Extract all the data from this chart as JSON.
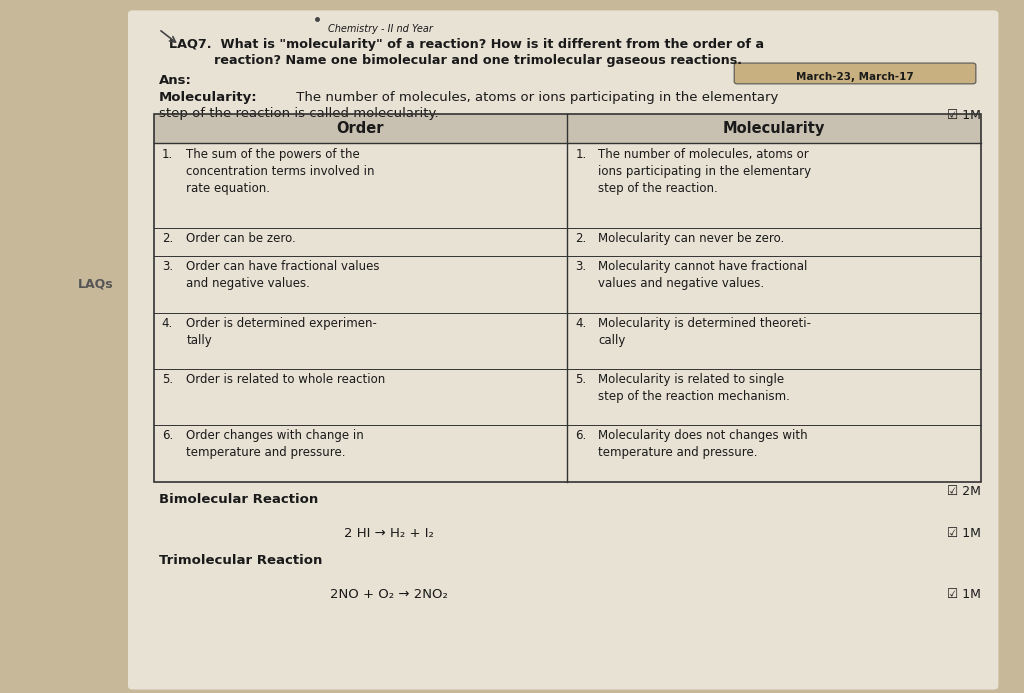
{
  "bg_color": "#c8b89a",
  "page_bg": "#e8e0d0",
  "header_small": "Chemistry - II nd Year",
  "question_line1": "LAQ7.  What is \"molecularity\" of a reaction? How is it different from the order of a",
  "question_line2": "          reaction? Name one bimolecular and one trimolecular gaseous reactions.",
  "ans_label": "Ans:",
  "date_label": "March-23, March-17",
  "mol_bold": "Molecularity:",
  "mol_rest_line1": " The number of molecules, atoms or ions participating in the elementary",
  "mol_line2": "step of the reaction is called molecularity.",
  "mark1a": "☑ 1M",
  "table_header_order": "Order",
  "table_header_mol": "Molecularity",
  "table_rows": [
    [
      "1.",
      "The sum of the powers of the\nconcentration terms involved in\nrate equation.",
      "1.",
      "The number of molecules, atoms or\nions participating in the elementary\nstep of the reaction."
    ],
    [
      "2.",
      "Order can be zero.",
      "2.",
      "Molecularity can never be zero."
    ],
    [
      "3.",
      "Order can have fractional values\nand negative values.",
      "3.",
      "Molecularity cannot have fractional\nvalues and negative values."
    ],
    [
      "4.",
      "Order is determined experimen-\ntally",
      "4.",
      "Molecularity is determined theoreti-\ncally"
    ],
    [
      "5.",
      "Order is related to whole reaction",
      "5.",
      "Molecularity is related to single\nstep of the reaction mechanism."
    ],
    [
      "6.",
      "Order changes with change in\ntemperature and pressure.",
      "6.",
      "Molecularity does not changes with\ntemperature and pressure."
    ]
  ],
  "mark2m": "☑ 2M",
  "bimolecular_label": "Bimolecular Reaction",
  "bimolecular_eq": "2 HI → H₂ + I₂",
  "mark1b": "☑ 1M",
  "trimolecular_label": "Trimolecular Reaction",
  "trimolecular_eq": "2NO + O₂ → 2NO₂",
  "mark1c": "☑ 1M",
  "side_label": "LAQs",
  "text_color": "#1a1a1a",
  "table_border_color": "#333333",
  "header_bg": "#c8c0b0"
}
